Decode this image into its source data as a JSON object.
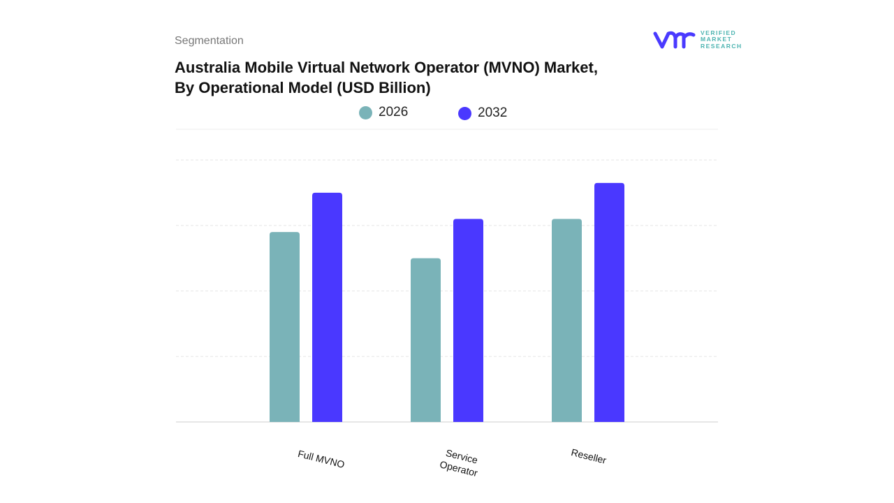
{
  "header": {
    "segment_label": "Segmentation",
    "title_line1": "Australia Mobile Virtual Network Operator (MVNO) Market,",
    "title_line2": "By Operational Model (USD Billion)"
  },
  "logo": {
    "mark": "vmr",
    "line1": "VERIFIED",
    "line2": "MARKET",
    "line3": "RESEARCH",
    "brand_color": "#4a3aff"
  },
  "chart_data": {
    "type": "bar",
    "title": "Australia Mobile Virtual Network Operator (MVNO) Market, By Operational Model (USD Billion)",
    "categories": [
      "Full MVNO",
      "Service Operator",
      "Reseller"
    ],
    "series": [
      {
        "name": "2026",
        "color": "#7ab3b8",
        "values": [
          2.9,
          2.5,
          3.1
        ]
      },
      {
        "name": "2032",
        "color": "#4a38ff",
        "values": [
          3.5,
          3.1,
          3.65
        ]
      }
    ],
    "xlabel": "",
    "ylabel": "",
    "ylim": [
      0,
      4
    ],
    "grid": true,
    "legend": "top-center"
  }
}
